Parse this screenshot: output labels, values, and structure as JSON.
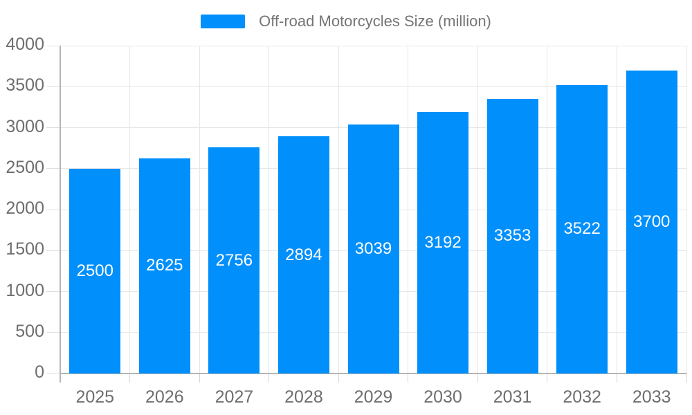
{
  "chart_data": {
    "type": "bar",
    "title": "",
    "categories": [
      "2025",
      "2026",
      "2027",
      "2028",
      "2029",
      "2030",
      "2031",
      "2032",
      "2033"
    ],
    "series": [
      {
        "name": "Off-road Motorcycles Size (million)",
        "values": [
          2500,
          2625,
          2756,
          2894,
          3039,
          3192,
          3353,
          3522,
          3700
        ]
      }
    ],
    "data_labels_shown": true,
    "xlabel": "",
    "ylabel": "",
    "ylim": [
      0,
      4000
    ],
    "ytick_step": 500,
    "ytick_labels": [
      "0",
      "500",
      "1000",
      "1500",
      "2000",
      "2500",
      "3000",
      "3500",
      "4000"
    ],
    "grid": true,
    "legend_position": "top",
    "colors": {
      "bar": "#008FFB",
      "axis_label": "#6e6e6e",
      "legend_label": "#757575",
      "gridline": "#e7e7e7",
      "axis_line": "#b4b4b4",
      "value_label": "#ffffff",
      "background": "#ffffff"
    }
  }
}
